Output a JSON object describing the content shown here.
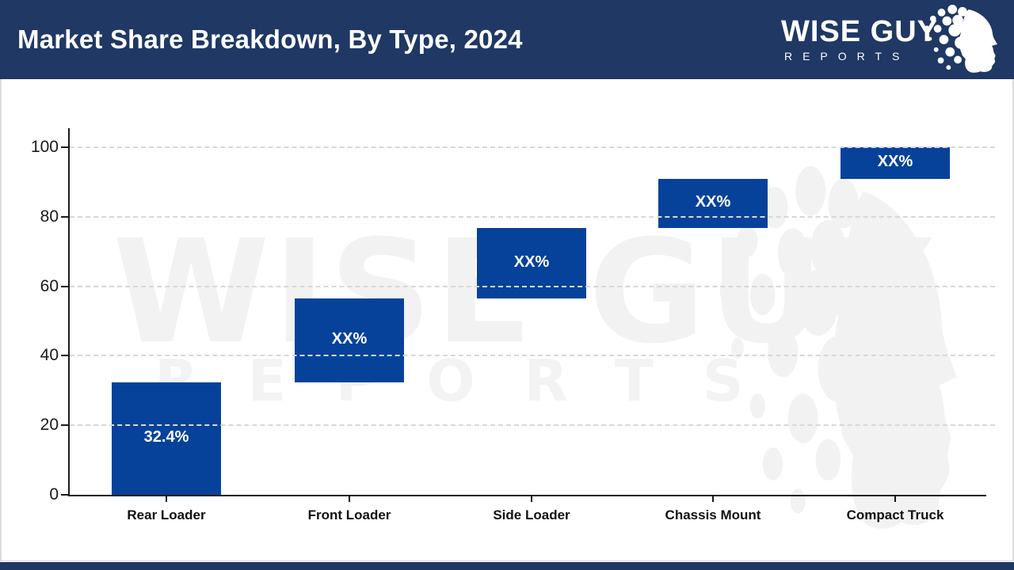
{
  "header": {
    "title": "Market Share Breakdown, By Type, 2024",
    "bg_color": "#1F3864",
    "logo": {
      "line1": "WISE GUY",
      "line2": "REPORTS"
    }
  },
  "watermark": {
    "line1": "WISE GUY",
    "line2": "REPORTS"
  },
  "chart_data": {
    "type": "bar",
    "subtype": "waterfall",
    "title": "Market Share Breakdown, By Type, 2024",
    "categories": [
      "Rear Loader",
      "Front Loader",
      "Side Loader",
      "Chassis Mount",
      "Compact Truck"
    ],
    "series": [
      {
        "name": "Market Share %",
        "starts": [
          0,
          32.4,
          56.5,
          76.7,
          91.0
        ],
        "ends": [
          32.4,
          56.5,
          76.7,
          91.0,
          100.0
        ],
        "values": [
          32.4,
          24.1,
          20.2,
          14.3,
          9.0
        ]
      }
    ],
    "bar_labels": [
      "32.4%",
      "XX%",
      "XX%",
      "XX%",
      "XX%"
    ],
    "xlabel": "",
    "ylabel": "",
    "ylim": [
      0,
      100
    ],
    "yticks": [
      0,
      20,
      40,
      60,
      80,
      100
    ],
    "grid": "horizontal-dashed",
    "grid_over_bars": true,
    "legend": "none",
    "bar_color": "#07429A",
    "label_color": "#FFFFFF",
    "axis_color": "#1a1a1a"
  },
  "footer": {
    "bg_color": "#1F3864"
  }
}
